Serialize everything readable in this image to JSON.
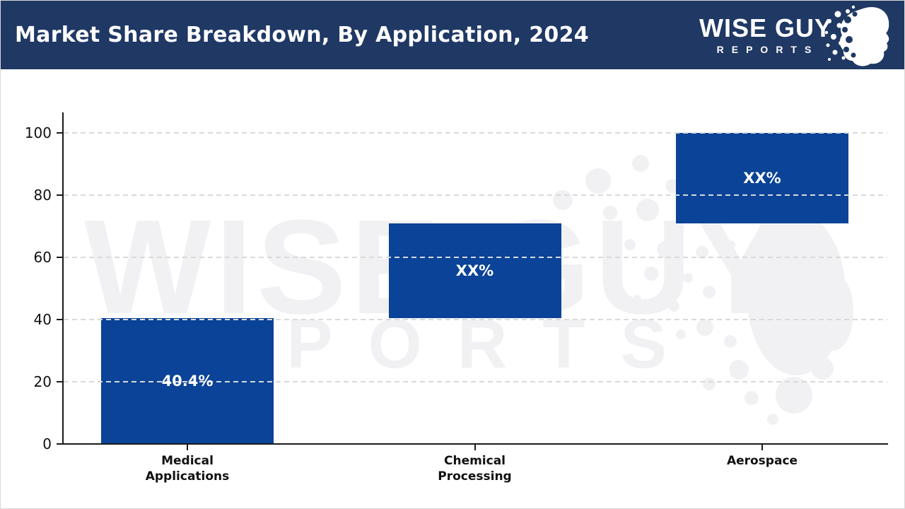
{
  "header": {
    "title": "Market Share Breakdown, By Application, 2024",
    "background_color": "#1f3864",
    "logo": {
      "name": "WISE GUY REPORTS",
      "line1": "WISE GUY",
      "line2": "REPORTS"
    }
  },
  "watermark": {
    "line1": "WISE GUY",
    "line2": "REPORTS"
  },
  "chart_data": {
    "type": "bar",
    "subtype": "floating-segment-bars (stacked waterfall of market share)",
    "title": "Market Share Breakdown, By Application, 2024",
    "categories": [
      {
        "name": "Medical Applications",
        "lines": [
          "Medical",
          "Applications"
        ]
      },
      {
        "name": "Chemical Processing",
        "lines": [
          "Chemical",
          "Processing"
        ]
      },
      {
        "name": "Aerospace",
        "lines": [
          "Aerospace"
        ]
      }
    ],
    "segments": [
      {
        "category": "Medical Applications",
        "start": 0,
        "end": 40.4,
        "label": "40.4%"
      },
      {
        "category": "Chemical Processing",
        "start": 40.4,
        "end": 71,
        "label": "XX%"
      },
      {
        "category": "Aerospace",
        "start": 71,
        "end": 100,
        "label": "XX%"
      }
    ],
    "ylim": [
      0,
      100
    ],
    "yticks": [
      0,
      20,
      40,
      60,
      80,
      100
    ],
    "xlabel": "",
    "ylabel": "",
    "legend": "none",
    "grid": {
      "axis": "y",
      "style": "dashed",
      "color": "#d9d9d9"
    },
    "bar_color": "#0a4397",
    "value_label_color": "#ffffff",
    "axis_color": "#1a1a1a"
  }
}
